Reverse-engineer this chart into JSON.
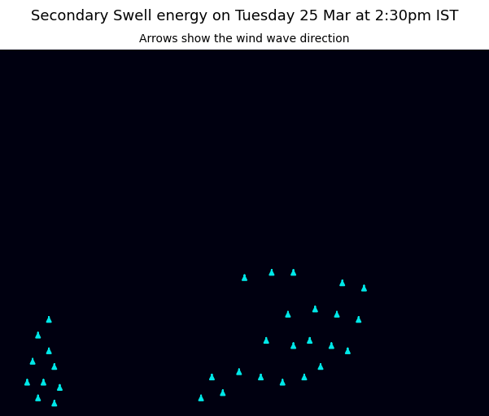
{
  "title": "Secondary Swell energy on Tuesday 25 Mar at 2:30pm IST",
  "subtitle": "Arrows show the wind wave direction",
  "title_fontsize": 13,
  "subtitle_fontsize": 10,
  "background_color": "#ffffff",
  "map_extent": [
    60,
    105,
    5,
    40
  ],
  "ocean_color": "#000010",
  "arrow_color": "#00e8e8",
  "arrows_west_ocean": [
    {
      "lon": 64.5,
      "lat": 14.5
    },
    {
      "lon": 63.5,
      "lat": 13.0
    },
    {
      "lon": 64.5,
      "lat": 11.5
    },
    {
      "lon": 63.0,
      "lat": 10.5
    },
    {
      "lon": 65.0,
      "lat": 10.0
    },
    {
      "lon": 62.5,
      "lat": 8.5
    },
    {
      "lon": 64.0,
      "lat": 8.5
    },
    {
      "lon": 65.5,
      "lat": 8.0
    },
    {
      "lon": 63.5,
      "lat": 7.0
    },
    {
      "lon": 65.0,
      "lat": 6.5
    }
  ],
  "arrows_bay_of_bengal": [
    {
      "lon": 78.5,
      "lat": 7.0
    },
    {
      "lon": 80.5,
      "lat": 7.5
    },
    {
      "lon": 79.5,
      "lat": 9.0
    },
    {
      "lon": 82.0,
      "lat": 9.5
    },
    {
      "lon": 84.0,
      "lat": 9.0
    },
    {
      "lon": 86.0,
      "lat": 8.5
    },
    {
      "lon": 88.0,
      "lat": 9.0
    },
    {
      "lon": 89.5,
      "lat": 10.0
    },
    {
      "lon": 84.5,
      "lat": 12.5
    },
    {
      "lon": 87.0,
      "lat": 12.0
    },
    {
      "lon": 88.5,
      "lat": 12.5
    },
    {
      "lon": 90.5,
      "lat": 12.0
    },
    {
      "lon": 92.0,
      "lat": 11.5
    },
    {
      "lon": 86.5,
      "lat": 15.0
    },
    {
      "lon": 89.0,
      "lat": 15.5
    },
    {
      "lon": 91.0,
      "lat": 15.0
    },
    {
      "lon": 93.0,
      "lat": 14.5
    },
    {
      "lon": 91.5,
      "lat": 18.0
    },
    {
      "lon": 93.5,
      "lat": 17.5
    },
    {
      "lon": 82.5,
      "lat": 18.5
    },
    {
      "lon": 85.0,
      "lat": 19.0
    },
    {
      "lon": 87.0,
      "lat": 19.0
    }
  ]
}
